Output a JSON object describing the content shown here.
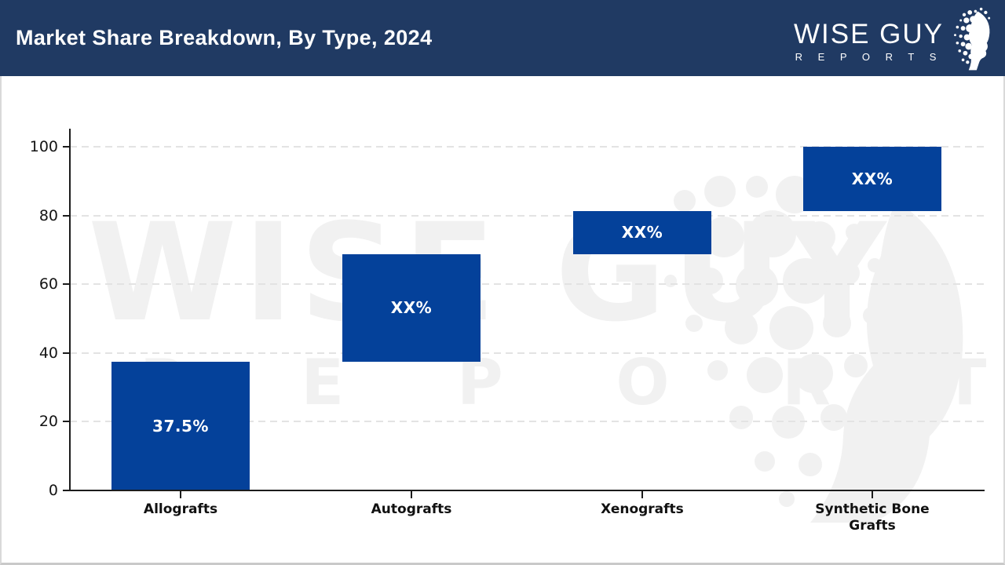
{
  "header": {
    "title": "Market Share Breakdown, By Type, 2024",
    "logo_line1": "WISE GUY",
    "logo_line2": "R E P O R T S"
  },
  "watermark": {
    "line1": "WISE GUY",
    "line2": "R E P O R T S"
  },
  "chart_data": {
    "type": "bar",
    "subtype": "floating-waterfall",
    "title": "Market Share Breakdown, By Type, 2024",
    "categories": [
      "Allografts",
      "Autografts",
      "Xenografts",
      "Synthetic Bone Grafts"
    ],
    "segments": [
      {
        "category": "Allografts",
        "start": 0,
        "end": 37.5,
        "label": "37.5%"
      },
      {
        "category": "Autografts",
        "start": 37.5,
        "end": 68.8,
        "label": "XX%"
      },
      {
        "category": "Xenografts",
        "start": 68.8,
        "end": 81.3,
        "label": "XX%"
      },
      {
        "category": "Synthetic Bone Grafts",
        "start": 81.3,
        "end": 100,
        "label": "XX%"
      }
    ],
    "xlabel": "",
    "ylabel": "",
    "ylim": [
      0,
      100
    ],
    "yticks": [
      0,
      20,
      40,
      60,
      80,
      100
    ],
    "grid": {
      "axis": "y",
      "style": "dashed",
      "color": "#e3e3e3"
    },
    "legend": "none",
    "bar_color": "#04419a",
    "bar_label_color": "#ffffff",
    "header_color": "#203a63"
  }
}
